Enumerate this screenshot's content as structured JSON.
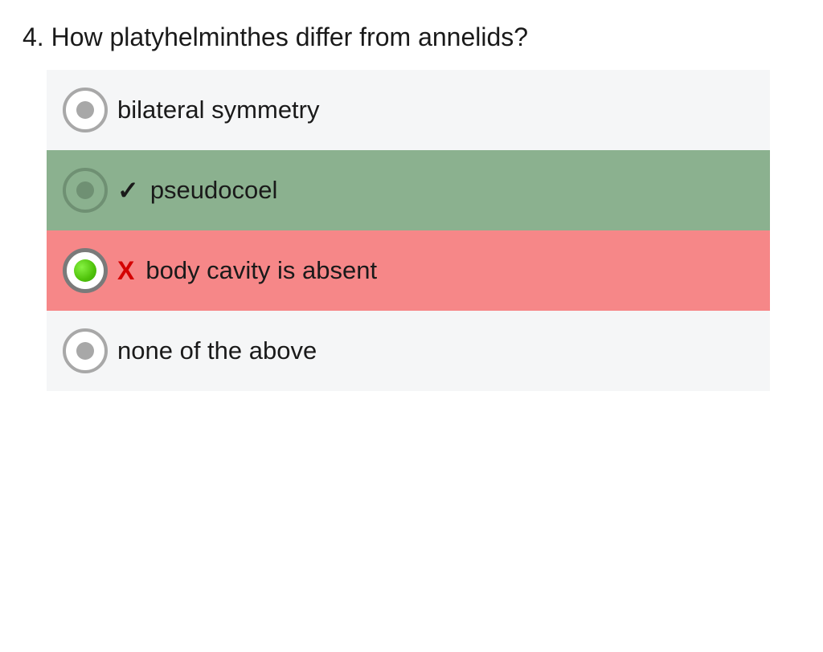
{
  "question": {
    "number": "4.",
    "text": "How platyhelminthes differ from annelids?"
  },
  "options": [
    {
      "label": "bilateral symmetry",
      "state": "default",
      "mark": null
    },
    {
      "label": "pseudocoel",
      "state": "correct",
      "mark": "check"
    },
    {
      "label": "body cavity is absent",
      "state": "wrong",
      "mark": "cross"
    },
    {
      "label": "none of the above",
      "state": "default",
      "mark": null
    }
  ],
  "marks": {
    "check": "✓",
    "cross": "X"
  },
  "colors": {
    "default_bg": "#f5f6f7",
    "correct_bg": "#8bb18f",
    "wrong_bg": "#f68788",
    "cross_color": "#d40101",
    "text_color": "#1a1a1a"
  }
}
